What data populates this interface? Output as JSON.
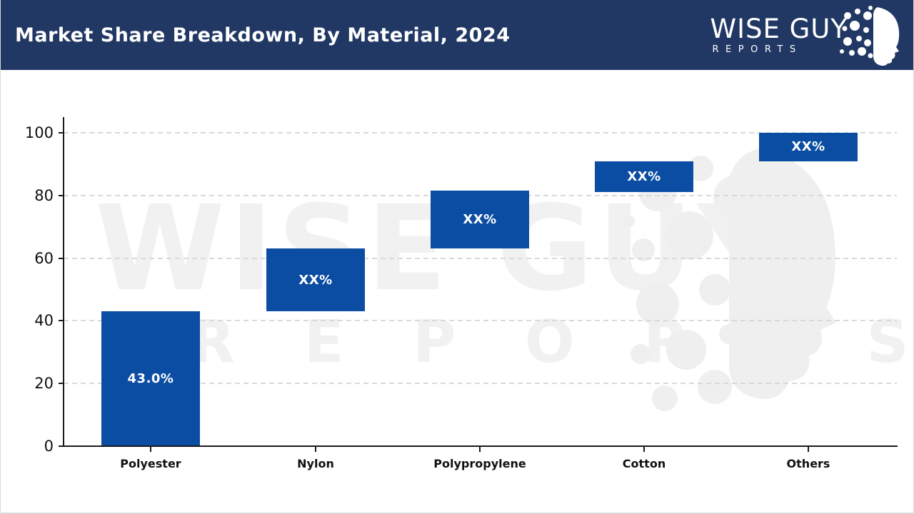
{
  "header": {
    "title": "Market Share Breakdown, By Material, 2024",
    "logo": {
      "line1": "WISE GUY",
      "line2": "REPORTS"
    }
  },
  "watermark": {
    "line1": "WISE GUY",
    "line2": "R E P O R T S"
  },
  "colors": {
    "header_bg": "#213864",
    "bar": "#0b4da2",
    "bar_label": "#ffffff",
    "grid": "#d9d9d9",
    "axis": "#1a1a1a",
    "watermark": "#f1f1f1"
  },
  "chart_data": {
    "type": "bar",
    "subtype": "floating-waterfall",
    "title": "Market Share Breakdown, By Material, 2024",
    "categories": [
      "Polyester",
      "Nylon",
      "Polypropylene",
      "Cotton",
      "Others"
    ],
    "segments": [
      {
        "category": "Polyester",
        "start": 0,
        "end": 43,
        "label": "43.0%"
      },
      {
        "category": "Nylon",
        "start": 43,
        "end": 63,
        "label": "XX%"
      },
      {
        "category": "Polypropylene",
        "start": 63,
        "end": 81.5,
        "label": "XX%"
      },
      {
        "category": "Cotton",
        "start": 81,
        "end": 91,
        "label": "XX%"
      },
      {
        "category": "Others",
        "start": 91,
        "end": 100,
        "label": "XX%"
      }
    ],
    "xlabel": "",
    "ylabel": "",
    "ylim": [
      0,
      100
    ],
    "yticks": [
      0,
      20,
      40,
      60,
      80,
      100
    ],
    "grid": "horizontal dashed",
    "legend": null
  }
}
